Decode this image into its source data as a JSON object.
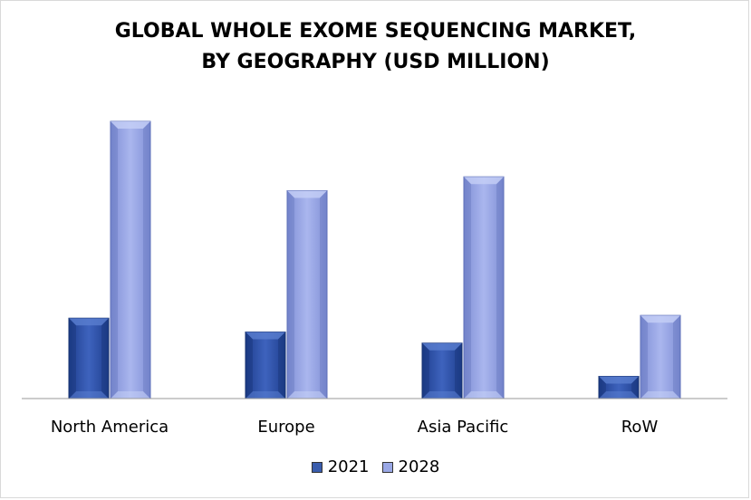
{
  "chart_data": {
    "type": "bar",
    "title_lines": [
      "GLOBAL WHOLE EXOME SEQUENCING MARKET,",
      "BY GEOGRAPHY (USD MILLION)"
    ],
    "categories": [
      "North America",
      "Europe",
      "Asia Pacific",
      "RoW"
    ],
    "series": [
      {
        "name": "2021",
        "values": [
          29,
          24,
          20,
          8
        ]
      },
      {
        "name": "2028",
        "values": [
          100,
          75,
          80,
          30
        ]
      }
    ],
    "ylim": [
      0,
      100
    ],
    "grid": false,
    "legend_position": "bottom",
    "colors": {
      "2021": "#3a5dad",
      "2028": "#9aa8e6"
    }
  }
}
